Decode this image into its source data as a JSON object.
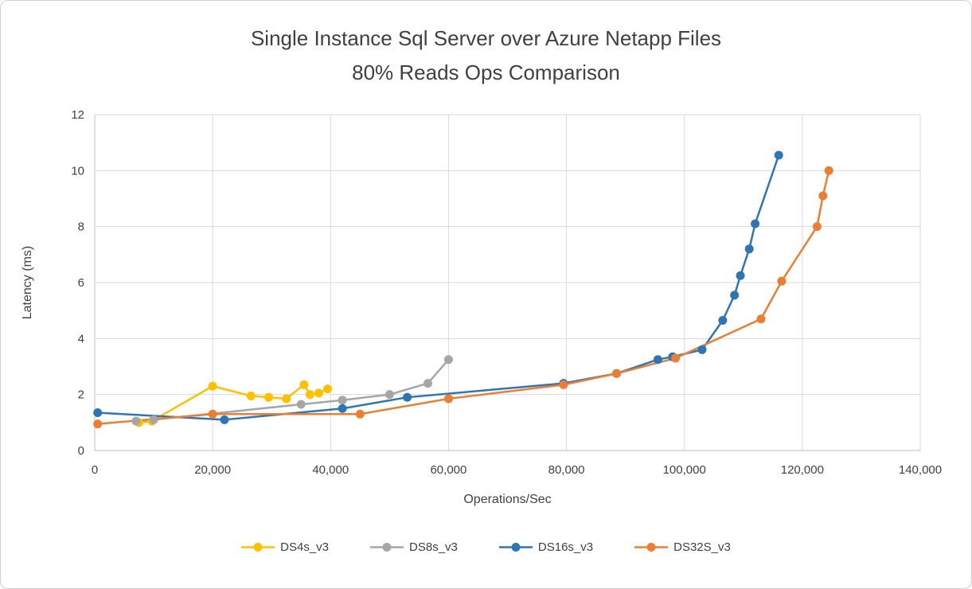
{
  "chart_data": {
    "type": "line",
    "title": "Single Instance Sql Server over Azure Netapp Files",
    "subtitle": "80% Reads Ops Comparison",
    "xlabel": "Operations/Sec",
    "ylabel": "Latency (ms)",
    "xlim": [
      0,
      140000
    ],
    "ylim": [
      0,
      12
    ],
    "x_tick_step": 20000,
    "y_tick_step": 2,
    "x_tick_labels": [
      "0",
      "20,000",
      "40,000",
      "60,000",
      "80,000",
      "100,000",
      "120,000",
      "140,000"
    ],
    "y_tick_labels": [
      "0",
      "2",
      "4",
      "6",
      "8",
      "10",
      "12"
    ],
    "grid": true,
    "legend_position": "bottom",
    "colors": {
      "gridline": "#d9d9d9",
      "axis_line": "#bfbfbf",
      "text": "#404040"
    },
    "series": [
      {
        "name": "DS4s_v3",
        "color": "#FFC000",
        "points": [
          [
            7500,
            1.0
          ],
          [
            9700,
            1.05
          ],
          [
            20000,
            2.3
          ],
          [
            26500,
            1.95
          ],
          [
            29500,
            1.9
          ],
          [
            32500,
            1.85
          ],
          [
            35500,
            2.35
          ],
          [
            36500,
            2.0
          ],
          [
            38000,
            2.05
          ],
          [
            39500,
            2.2
          ]
        ]
      },
      {
        "name": "DS8s_v3",
        "color": "#A6A6A6",
        "points": [
          [
            7000,
            1.05
          ],
          [
            10000,
            1.1
          ],
          [
            35000,
            1.65
          ],
          [
            42000,
            1.8
          ],
          [
            50000,
            2.0
          ],
          [
            56500,
            2.4
          ],
          [
            60000,
            3.25
          ]
        ]
      },
      {
        "name": "DS16s_v3",
        "color": "#2E75B6",
        "points": [
          [
            500,
            1.35
          ],
          [
            22000,
            1.1
          ],
          [
            42000,
            1.5
          ],
          [
            53000,
            1.9
          ],
          [
            79500,
            2.4
          ],
          [
            88500,
            2.75
          ],
          [
            95500,
            3.25
          ],
          [
            98000,
            3.35
          ],
          [
            103000,
            3.6
          ],
          [
            106500,
            4.65
          ],
          [
            108500,
            5.55
          ],
          [
            109500,
            6.25
          ],
          [
            111000,
            7.2
          ],
          [
            112000,
            8.1
          ],
          [
            116000,
            10.55
          ]
        ]
      },
      {
        "name": "DS32S_v3",
        "color": "#ED7D31",
        "points": [
          [
            500,
            0.95
          ],
          [
            20000,
            1.3
          ],
          [
            45000,
            1.3
          ],
          [
            60000,
            1.85
          ],
          [
            79500,
            2.35
          ],
          [
            88500,
            2.75
          ],
          [
            98500,
            3.3
          ],
          [
            113000,
            4.7
          ],
          [
            116500,
            6.05
          ],
          [
            122500,
            8.0
          ],
          [
            123500,
            9.1
          ],
          [
            124500,
            10.0
          ]
        ]
      }
    ]
  }
}
